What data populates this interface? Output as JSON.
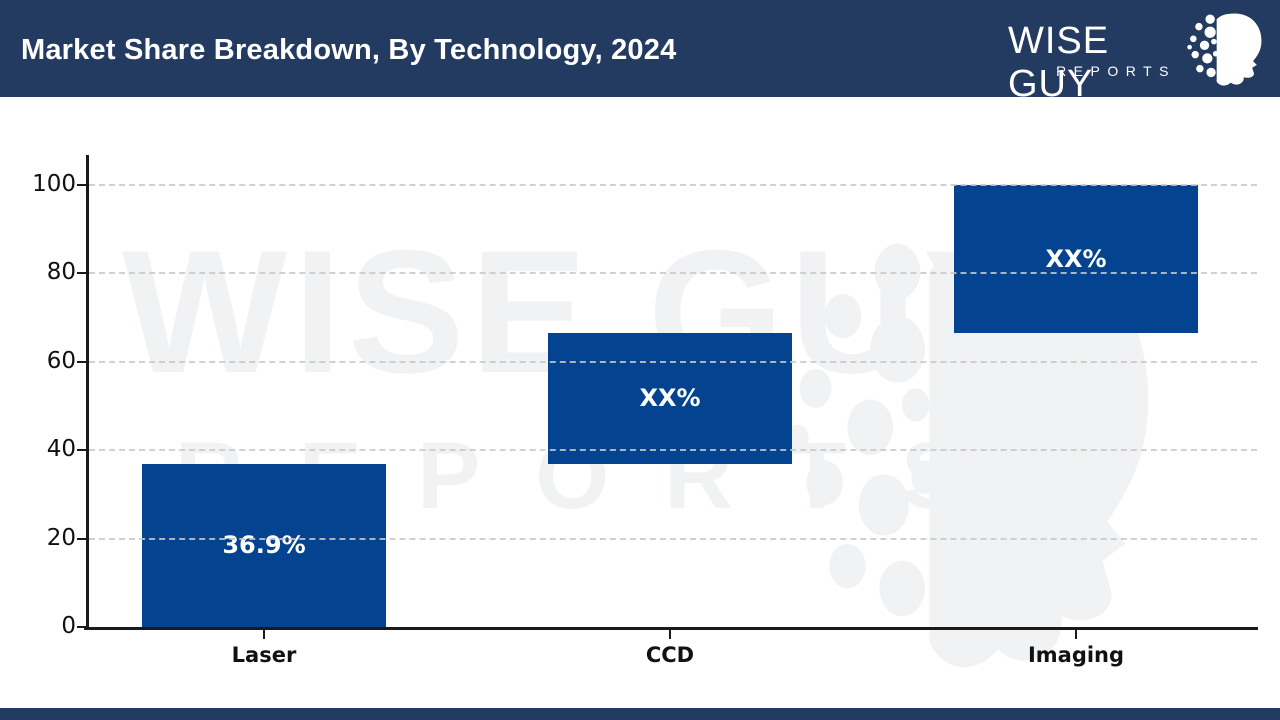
{
  "header": {
    "title": "Market Share Breakdown, By Technology, 2024",
    "logo": {
      "line1": "WISE GUY",
      "line2": "REPORTS"
    },
    "bg_color": "#233a61"
  },
  "watermark": {
    "line1": "WISE GUY",
    "line2": "REPORTS"
  },
  "chart_data": {
    "type": "bar",
    "subtype": "floating-waterfall",
    "title": "Market Share Breakdown, By Technology, 2024",
    "categories": [
      "Laser",
      "CCD",
      "Imaging"
    ],
    "segments": [
      {
        "category": "Laser",
        "start": 0,
        "end": 36.9,
        "label": "36.9%"
      },
      {
        "category": "CCD",
        "start": 36.9,
        "end": 66.5,
        "label": "XX%"
      },
      {
        "category": "Imaging",
        "start": 66.5,
        "end": 100,
        "label": "XX%"
      }
    ],
    "bar_color": "#04438f",
    "bar_label_color": "#ffffff",
    "ylim": [
      0,
      100
    ],
    "yticks": [
      0,
      20,
      40,
      60,
      80,
      100
    ],
    "grid": "dashed-horizontal",
    "legend": "none",
    "xlabel": "",
    "ylabel": ""
  },
  "footer": {
    "bg_color": "#233a61"
  }
}
